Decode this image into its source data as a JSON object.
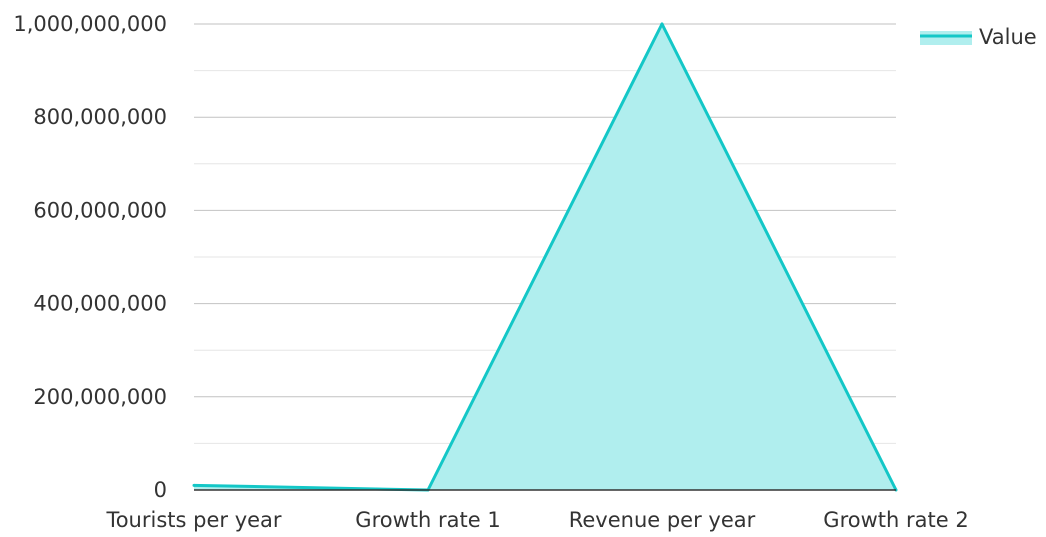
{
  "chart_data": {
    "type": "area",
    "categories": [
      "Tourists per year",
      "Growth rate 1",
      "Revenue per year",
      "Growth rate 2"
    ],
    "series": [
      {
        "name": "Value",
        "values": [
          10000000,
          0,
          1000000000,
          0
        ],
        "color": "#13C7C7",
        "fill": "#B0EEEE"
      }
    ],
    "ylim": [
      0,
      1000000000
    ],
    "yticks": [
      "0",
      "200,000,000",
      "400,000,000",
      "600,000,000",
      "800,000,000",
      "1,000,000,000"
    ],
    "ytick_values": [
      0,
      200000000,
      400000000,
      600000000,
      800000000,
      1000000000
    ],
    "grid": true,
    "legend": "top-right",
    "colors": {
      "major_grid": "#c2c2c2",
      "minor_grid": "#e6e6e6",
      "baseline": "#333333",
      "text": "#333333"
    }
  }
}
